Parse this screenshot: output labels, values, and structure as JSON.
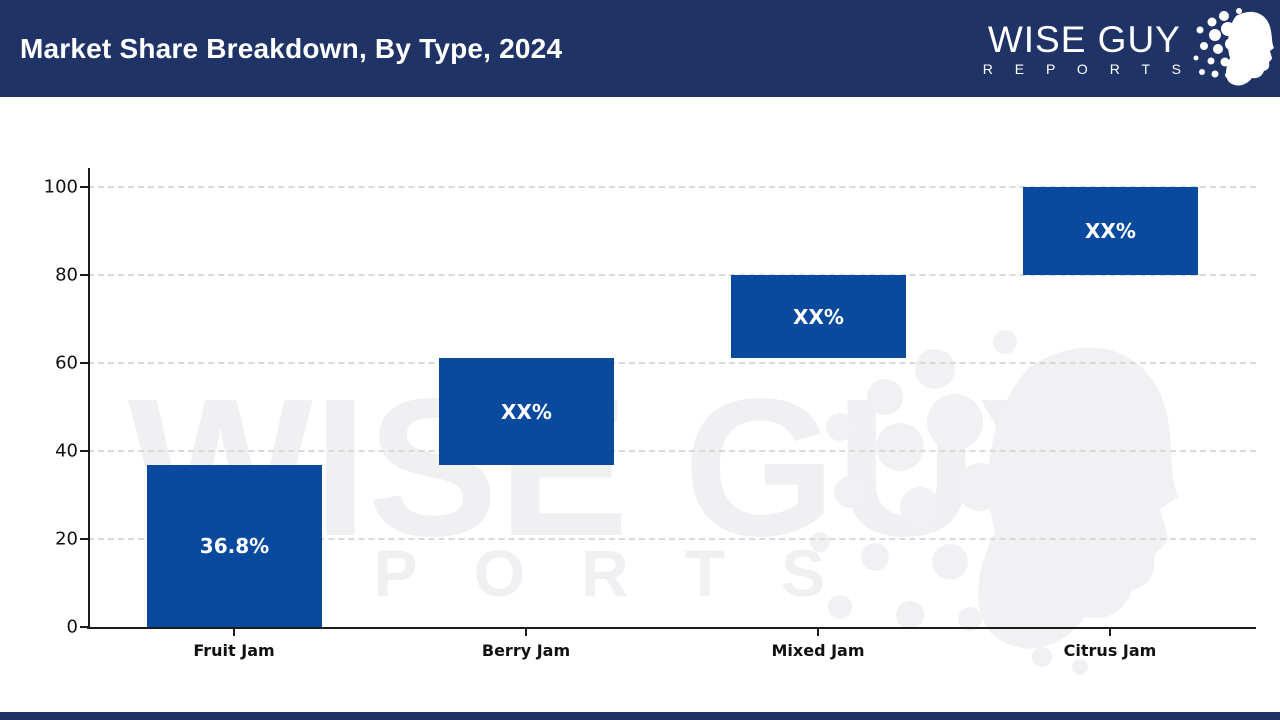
{
  "header": {
    "title": "Market Share Breakdown, By Type, 2024",
    "logo": {
      "line1": "WISE GUY",
      "line2": "R E P O R T S"
    }
  },
  "watermark": {
    "line1": "WISE GUY",
    "line2": "REPORTS"
  },
  "chart_data": {
    "type": "bar",
    "subtype": "waterfall",
    "title": "Market Share Breakdown, By Type, 2024",
    "categories": [
      "Fruit Jam",
      "Berry Jam",
      "Mixed Jam",
      "Citrus Jam"
    ],
    "segments": [
      {
        "category": "Fruit Jam",
        "start": 0,
        "end": 36.8,
        "label": "36.8%"
      },
      {
        "category": "Berry Jam",
        "start": 36.8,
        "end": 61.2,
        "label": "XX%"
      },
      {
        "category": "Mixed Jam",
        "start": 61.2,
        "end": 80,
        "label": "XX%"
      },
      {
        "category": "Citrus Jam",
        "start": 80,
        "end": 100,
        "label": "XX%"
      }
    ],
    "xlabel": "",
    "ylabel": "",
    "ylim": [
      0,
      100
    ],
    "yticks": [
      0,
      20,
      40,
      60,
      80,
      100
    ],
    "grid": "horizontal-dashed",
    "legend": "none"
  },
  "colors": {
    "header_bg": "#1f3366",
    "footer_bg": "#1f3366",
    "bar": "#0a4a9e",
    "bar_label": "#ffffff",
    "watermark": "#f0f0f2",
    "gridline": "#d9d9d9",
    "axis": "#1c1c1c"
  }
}
